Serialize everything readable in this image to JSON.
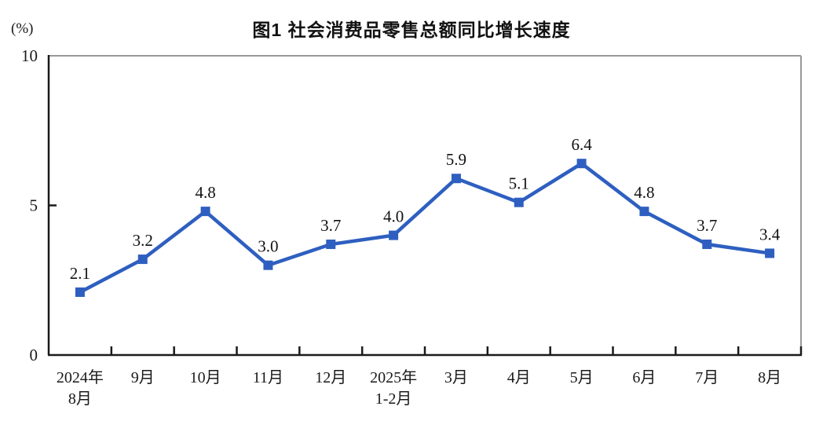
{
  "chart_data": {
    "type": "line",
    "title": "图1  社会消费品零售总额同比增长速度",
    "unit_label": "(%)",
    "categories": [
      "2024年\n8月",
      "9月",
      "10月",
      "11月",
      "12月",
      "2025年\n1-2月",
      "3月",
      "4月",
      "5月",
      "6月",
      "7月",
      "8月"
    ],
    "values": [
      2.1,
      3.2,
      4.8,
      3.0,
      3.7,
      4.0,
      5.9,
      5.1,
      6.4,
      4.8,
      3.7,
      3.4
    ],
    "y_ticks": [
      0,
      5,
      10
    ],
    "ylim": [
      0,
      10
    ],
    "grid": "off",
    "legend": "none",
    "colors": {
      "line": "#2E5FC0",
      "marker": "#2E5FC0",
      "axis": "#1a1a1a",
      "border_gray": "#999999",
      "label_text": "#111111",
      "tick_text": "#1a1a1a"
    }
  }
}
